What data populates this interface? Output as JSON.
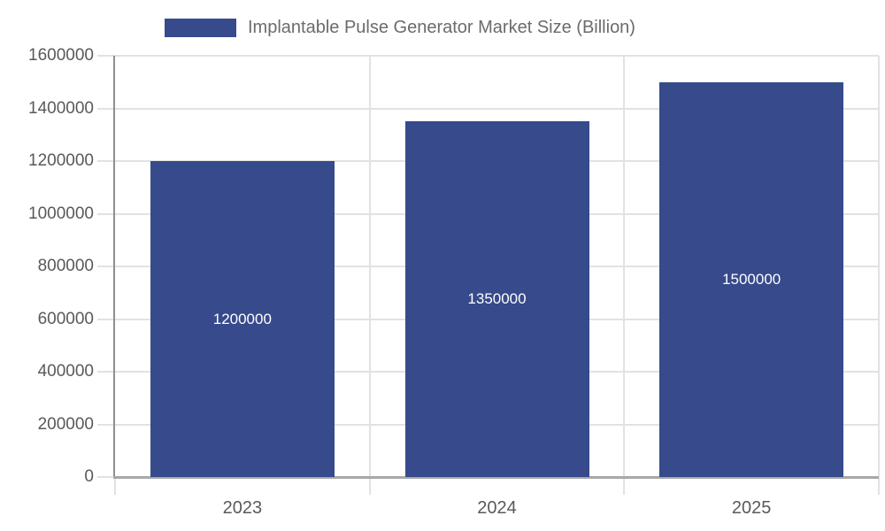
{
  "legend": {
    "label": "Implantable Pulse Generator Market Size (Billion)"
  },
  "colors": {
    "bar": "#364a8c",
    "grid_line": "#e2e2e2",
    "y_axis_line": "#8f8f8f",
    "x_axis_line": "#a8a8a8",
    "tick_label_text": "#595959",
    "legend_text": "#6b6b6b",
    "bar_label_text": "#ffffff",
    "background": "#ffffff"
  },
  "chart_data": {
    "type": "bar",
    "title": "Implantable Pulse Generator Market Size (Billion)",
    "categories": [
      "2023",
      "2024",
      "2025"
    ],
    "series": [
      {
        "name": "Implantable Pulse Generator Market Size (Billion)",
        "values": [
          1200000,
          1350000,
          1500000
        ]
      }
    ],
    "values": [
      1200000,
      1350000,
      1500000
    ],
    "data_labels": [
      "1200000",
      "1350000",
      "1500000"
    ],
    "xlabel": "",
    "ylabel": "",
    "ylim": [
      0,
      1600000
    ],
    "ytick_step": 200000,
    "yticks": [
      0,
      200000,
      400000,
      600000,
      800000,
      1000000,
      1200000,
      1400000,
      1600000
    ],
    "ytick_labels": [
      "0",
      "200000",
      "400000",
      "600000",
      "800000",
      "1000000",
      "1200000",
      "1400000",
      "1600000"
    ],
    "grid": true,
    "legend_position": "top-center",
    "data_label_position": "inside-center"
  }
}
